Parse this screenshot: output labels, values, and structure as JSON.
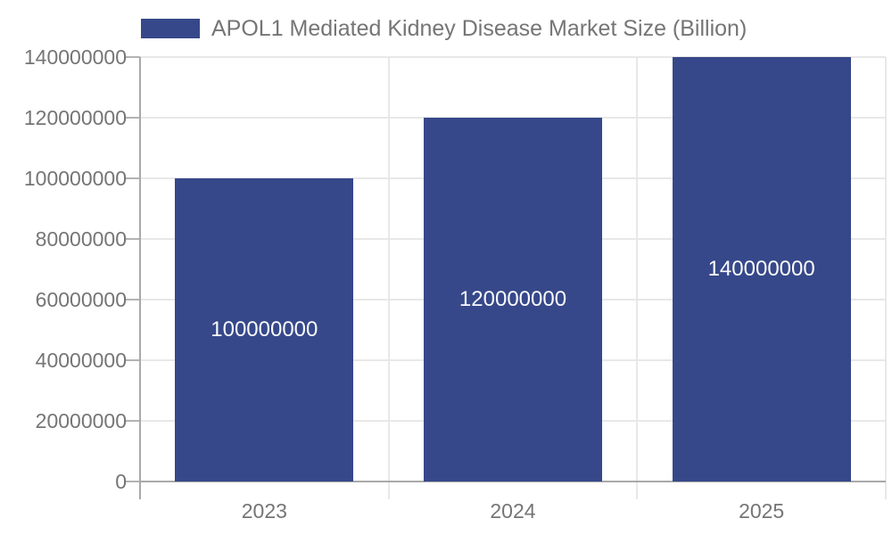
{
  "legend": {
    "label": "APOL1 Mediated Kidney Disease Market Size (Billion)"
  },
  "chart_data": {
    "type": "bar",
    "title": "APOL1 Mediated Kidney Disease Market Size (Billion)",
    "categories": [
      "2023",
      "2024",
      "2025"
    ],
    "values": [
      100000000,
      120000000,
      140000000
    ],
    "bar_labels": [
      "100000000",
      "120000000",
      "140000000"
    ],
    "xlabel": "",
    "ylabel": "",
    "ylim": [
      0,
      140000000
    ],
    "y_ticks": [
      0,
      20000000,
      40000000,
      60000000,
      80000000,
      100000000,
      120000000,
      140000000
    ],
    "y_tick_labels": [
      "0",
      "20000000",
      "40000000",
      "60000000",
      "80000000",
      "100000000",
      "120000000",
      "140000000"
    ],
    "grid": true,
    "legend_position": "top",
    "colors": {
      "bar": "#36488A",
      "bar_label_text": "#fafafa",
      "axis_text": "#757575",
      "grid_line": "#e8e8e8",
      "axis_line": "#a9a9a9",
      "tick_line": "#b3b3b3"
    }
  }
}
